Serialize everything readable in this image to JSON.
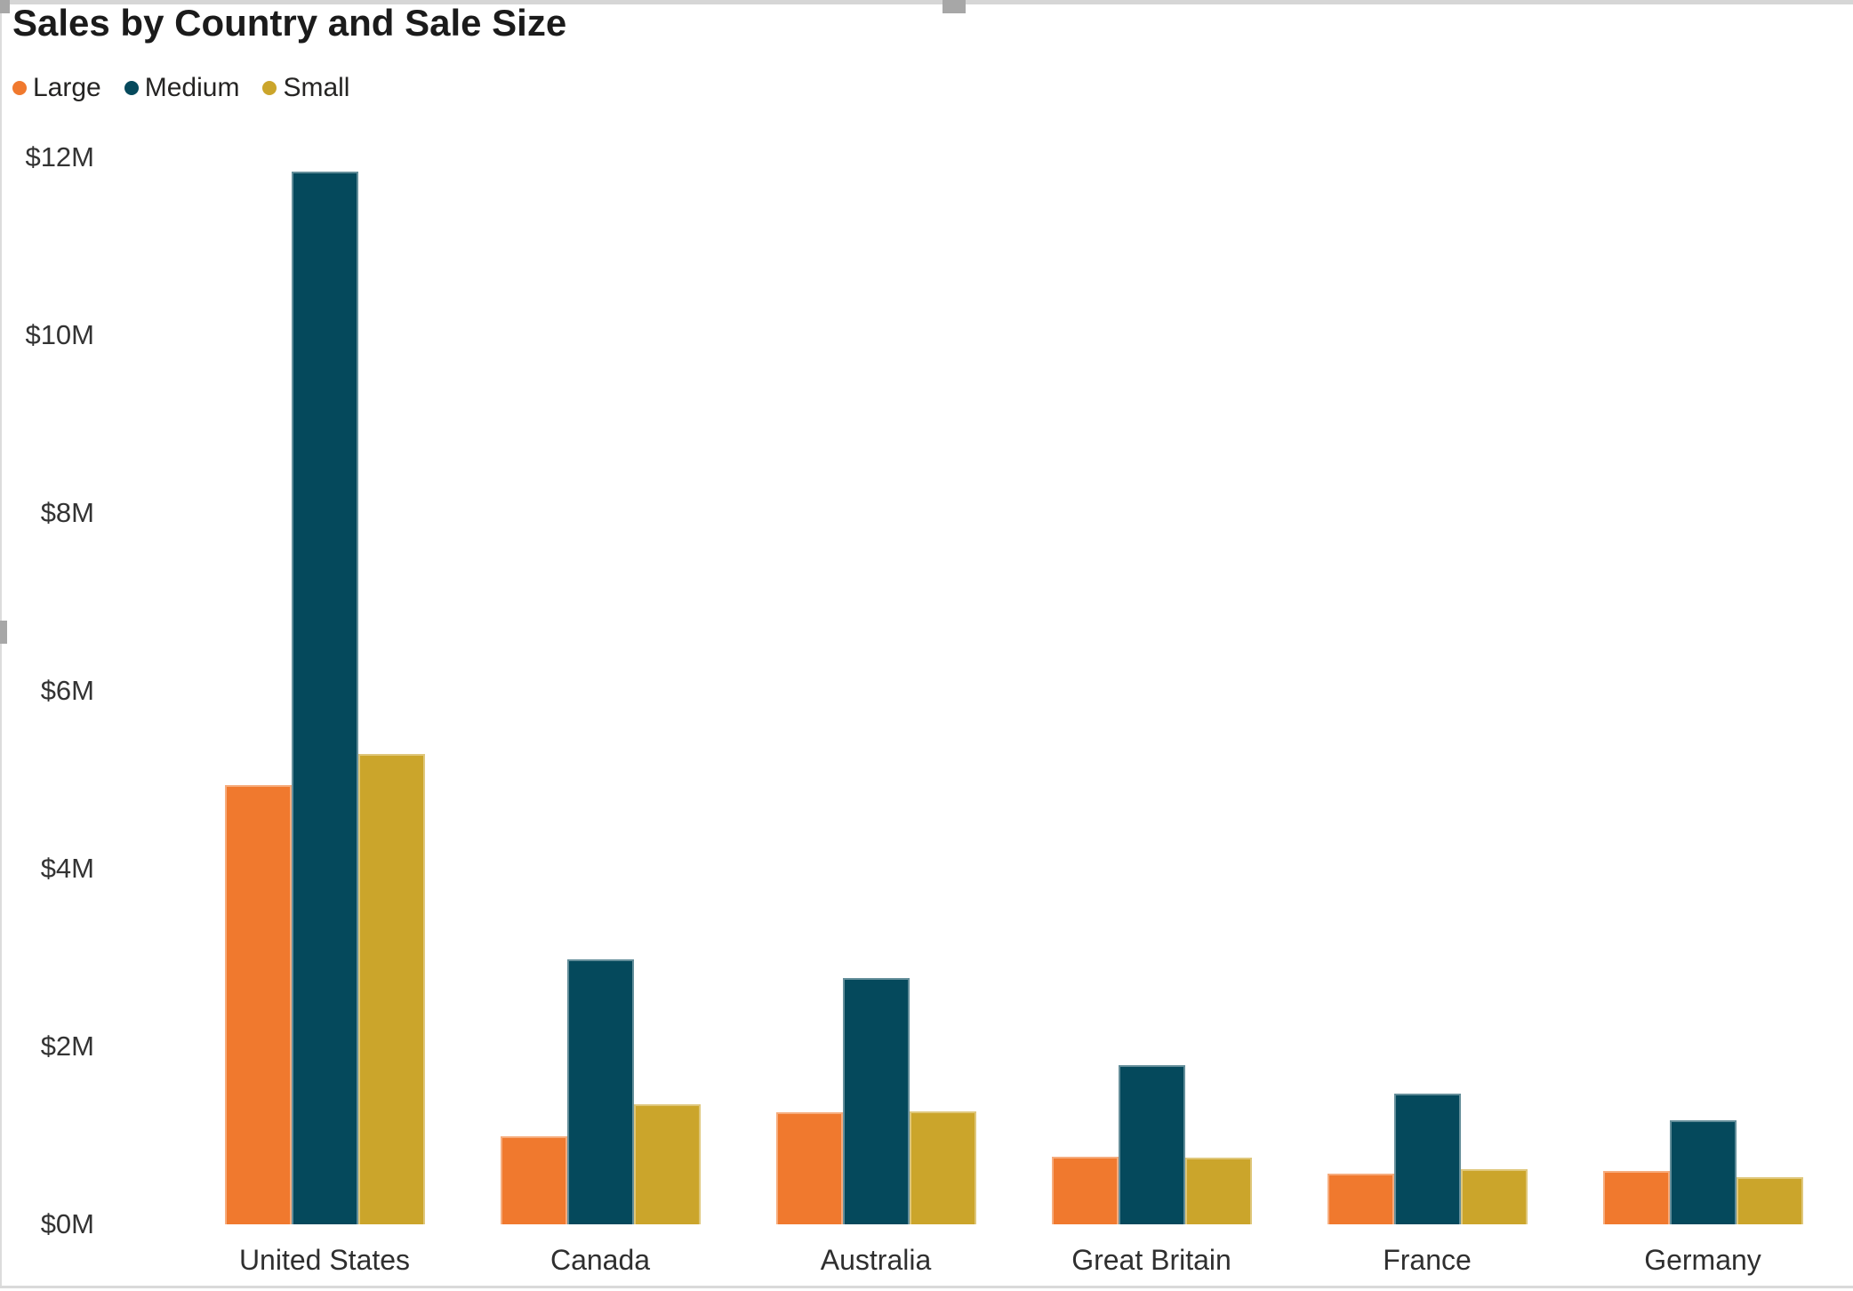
{
  "title": "Sales by Country and Sale Size",
  "header": {
    "icons": [
      "filter-icon",
      "more-options-icon"
    ]
  },
  "legend": {
    "items": [
      {
        "label": "Large",
        "color": "#F0792E"
      },
      {
        "label": "Medium",
        "color": "#05495C"
      },
      {
        "label": "Small",
        "color": "#CBA52B"
      }
    ]
  },
  "chart_data": {
    "type": "bar",
    "title": "Sales by Country and Sale Size",
    "categories": [
      "United States",
      "Canada",
      "Australia",
      "Great Britain",
      "France",
      "Germany"
    ],
    "series": [
      {
        "name": "Large",
        "color": "#F0792E",
        "values": [
          4.94,
          0.99,
          1.26,
          0.76,
          0.57,
          0.6
        ]
      },
      {
        "name": "Medium",
        "color": "#05495C",
        "values": [
          11.84,
          2.98,
          2.77,
          1.79,
          1.47,
          1.17
        ]
      },
      {
        "name": "Small",
        "color": "#CBA52B",
        "values": [
          5.29,
          1.35,
          1.27,
          0.75,
          0.62,
          0.53
        ]
      }
    ],
    "xlabel": "",
    "ylabel": "",
    "y_unit": "$M",
    "y_ticks": [
      "$0M",
      "$2M",
      "$4M",
      "$6M",
      "$8M",
      "$10M",
      "$12M"
    ],
    "ylim": [
      0,
      12
    ],
    "grid": false,
    "legend_position": "top-left"
  }
}
